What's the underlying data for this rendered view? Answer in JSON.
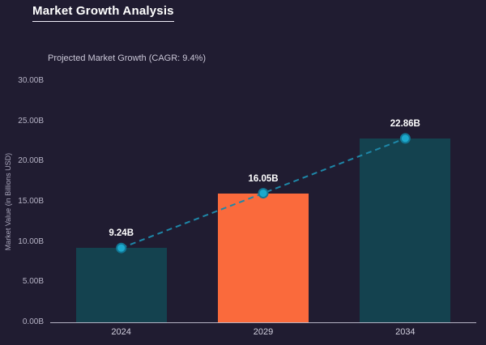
{
  "title": "Market Growth Analysis",
  "subtitle": "Projected Market Growth (CAGR: 9.4%)",
  "colors": {
    "background": "#201c31",
    "bar_teal": "#14424f",
    "bar_orange": "#fa6a3c",
    "trend_line": "#1e87a8",
    "marker_fill": "#1ca9cc",
    "marker_stroke": "#127795",
    "title_text": "#ffffff",
    "tick_text": "#b6b3c6"
  },
  "chart_data": {
    "type": "bar",
    "title": "Market Growth Analysis",
    "subtitle": "Projected Market Growth (CAGR: 9.4%)",
    "categories": [
      "2024",
      "2029",
      "2034"
    ],
    "values": [
      9.24,
      16.05,
      22.86
    ],
    "value_labels": [
      "9.24B",
      "16.05B",
      "22.86B"
    ],
    "series_colors": [
      "#14424f",
      "#fa6a3c",
      "#14424f"
    ],
    "trend_overlay": "dashed line with circular markers through bar tops",
    "xlabel": "",
    "ylabel": "Market Value (in Billions USD)",
    "ylim": [
      0,
      30
    ],
    "yticks": [
      "0.00B",
      "5.00B",
      "10.00B",
      "15.00B",
      "20.00B",
      "25.00B",
      "30.00B"
    ],
    "grid": "off",
    "legend": "none",
    "cagr_percent": 9.4
  }
}
